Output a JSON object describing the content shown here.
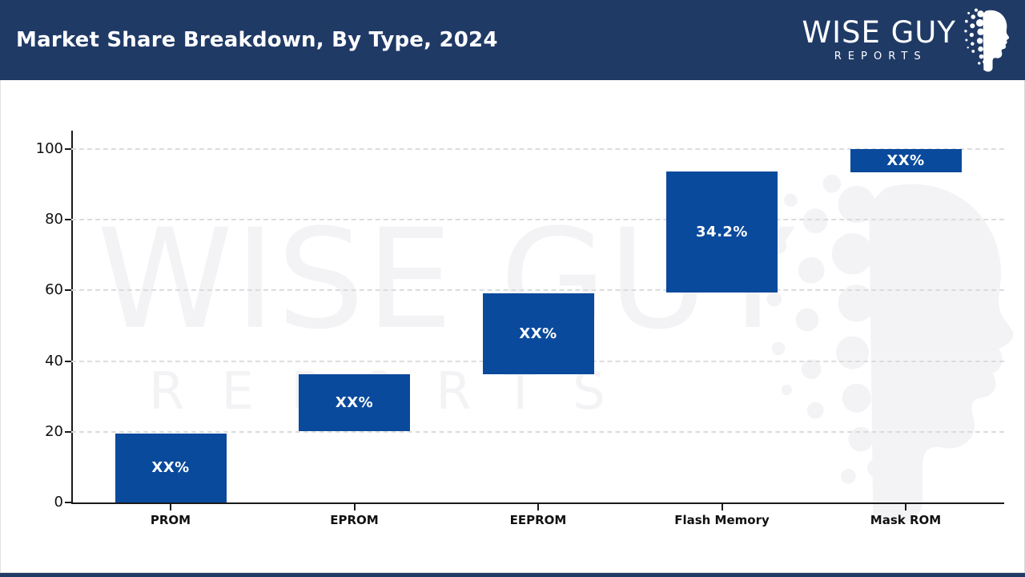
{
  "header": {
    "title": "Market Share Breakdown, By Type, 2024",
    "bg_color": "#203a66",
    "brand": {
      "line1": "WISE GUY",
      "line2": "REPORTS"
    }
  },
  "watermark": {
    "line1": "WISE GUY",
    "line2": "REPORTS"
  },
  "chart_data": {
    "type": "bar",
    "subtype": "waterfall",
    "title": "Market Share Breakdown, By Type, 2024",
    "categories": [
      "PROM",
      "EPROM",
      "EEPROM",
      "Flash Memory",
      "Mask ROM"
    ],
    "segments": [
      {
        "category": "PROM",
        "start": 0,
        "end": 19.6,
        "label": "XX%"
      },
      {
        "category": "EPROM",
        "start": 20.1,
        "end": 36.2,
        "label": "XX%"
      },
      {
        "category": "EEPROM",
        "start": 36.3,
        "end": 59.2,
        "label": "XX%"
      },
      {
        "category": "Flash Memory",
        "start": 59.4,
        "end": 93.6,
        "label": "34.2%"
      },
      {
        "category": "Mask ROM",
        "start": 93.4,
        "end": 100,
        "label": "XX%"
      }
    ],
    "y_ticks": [
      0,
      20,
      40,
      60,
      80,
      100
    ],
    "ylim": [
      0,
      100
    ],
    "xlabel": "",
    "ylabel": "",
    "grid": "dashed-horizontal",
    "legend": "none",
    "bar_color": "#0a4a9c",
    "bar_label_color": "#ffffff"
  }
}
